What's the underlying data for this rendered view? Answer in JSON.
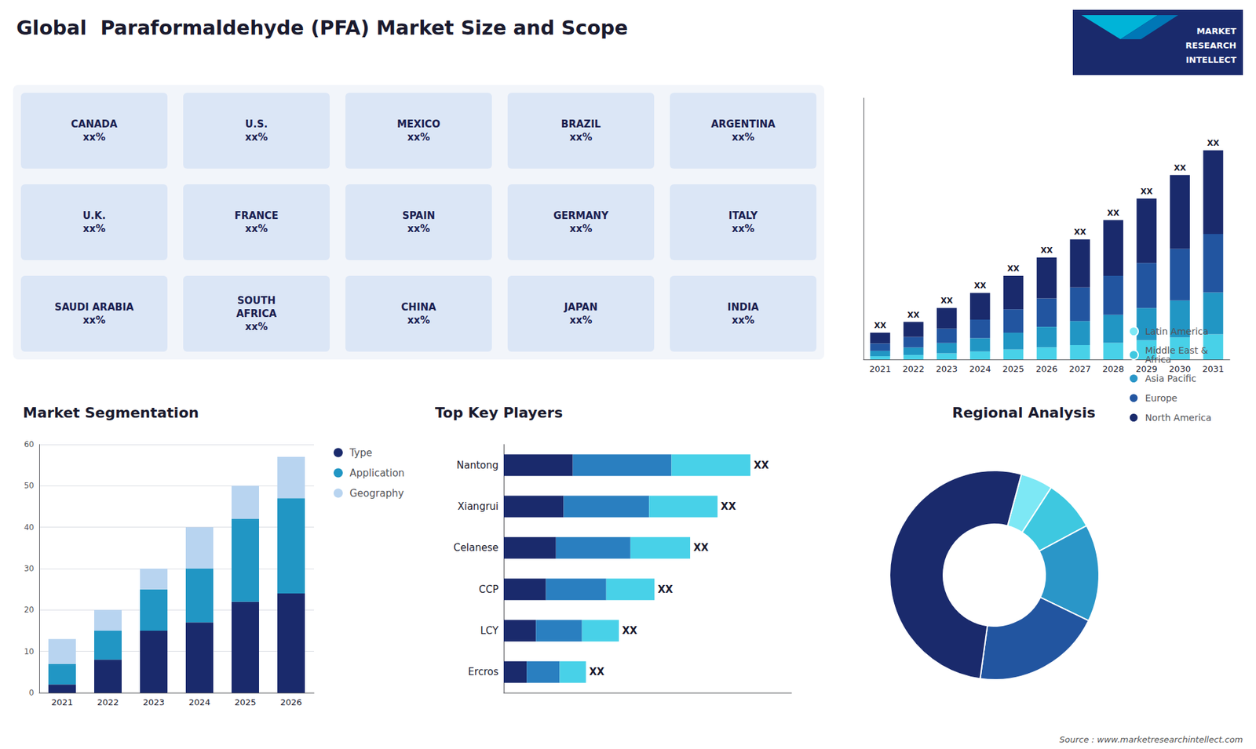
{
  "chart_data": [
    {
      "type": "map",
      "title": "Global  Paraformaldehyde (PFA) Market Size and Scope",
      "annotations": [
        "CANADA\nxx%",
        "U.S.\nxx%",
        "MEXICO\nxx%",
        "BRAZIL\nxx%",
        "ARGENTINA\nxx%",
        "U.K.\nxx%",
        "FRANCE\nxx%",
        "SPAIN\nxx%",
        "GERMANY\nxx%",
        "ITALY\nxx%",
        "SAUDI ARABIA\nxx%",
        "SOUTH\nAFRICA\nxx%",
        "CHINA\nxx%",
        "JAPAN\nxx%",
        "INDIA\nxx%"
      ],
      "logo": [
        "MARKET",
        "RESEARCH",
        "INTELLECT"
      ],
      "source": "Source : www.marketresearchintellect.com"
    },
    {
      "type": "bar",
      "stacked": true,
      "grid": false,
      "tick_labels": "x",
      "categories": [
        "2021",
        "2022",
        "2023",
        "2024",
        "2025",
        "2026",
        "2027",
        "2028",
        "2029",
        "2030",
        "2031"
      ],
      "ylim": [
        0,
        24.375
      ],
      "series": [
        {
          "color": "#48d1e8",
          "values": [
            0.3,
            0.42,
            0.576,
            0.744,
            0.936,
            1.14,
            1.344,
            1.56,
            1.8,
            2.064,
            2.34
          ]
        },
        {
          "color": "#2196c4",
          "values": [
            0.5,
            0.7,
            0.96,
            1.24,
            1.56,
            1.9,
            2.24,
            2.6,
            3.0,
            3.44,
            3.9
          ]
        },
        {
          "color": "#2255a0",
          "values": [
            0.7,
            0.98,
            1.344,
            1.736,
            2.184,
            2.66,
            3.136,
            3.64,
            4.2,
            4.816,
            5.46
          ]
        },
        {
          "color": "#1a2a6c",
          "values": [
            1.0,
            1.4,
            1.92,
            2.48,
            3.12,
            3.8,
            4.48,
            5.2,
            6.0,
            6.88,
            7.8
          ],
          "value_labels": [
            "XX",
            "XX",
            "XX",
            "XX",
            "XX",
            "XX",
            "XX",
            "XX",
            "XX",
            "XX",
            "XX"
          ]
        }
      ]
    },
    {
      "type": "bar",
      "title": "Market Segmentation",
      "stacked": true,
      "grid": true,
      "legend": "right",
      "categories": [
        "2021",
        "2022",
        "2023",
        "2024",
        "2025",
        "2026"
      ],
      "ylim": [
        0,
        60
      ],
      "yticks": [
        0,
        10,
        20,
        30,
        40,
        50,
        60
      ],
      "series": [
        {
          "name": "Type",
          "color": "#1a2a6c",
          "values": [
            2,
            8,
            15,
            17,
            22,
            24
          ]
        },
        {
          "name": "Application",
          "color": "#2196c4",
          "values": [
            5,
            7,
            10,
            13,
            20,
            23
          ]
        },
        {
          "name": "Geography",
          "color": "#b8d4f0",
          "values": [
            6,
            5,
            5,
            10,
            8,
            10
          ]
        }
      ]
    },
    {
      "type": "bar",
      "title": "Top Key Players",
      "orientation": "horizontal",
      "stacked": true,
      "grid": false,
      "tick_labels": "y",
      "categories": [
        "Nantong",
        "Xiangrui",
        "Celanese",
        "CCP",
        "LCY",
        "Ercros"
      ],
      "xlim": [
        0,
        1.05
      ],
      "series": [
        {
          "color": "#1a2a6c",
          "values": [
            0.252,
            0.2184,
            0.1904,
            0.154,
            0.1176,
            0.084
          ]
        },
        {
          "color": "#2a7fc0",
          "values": [
            0.36,
            0.312,
            0.272,
            0.22,
            0.168,
            0.12
          ]
        },
        {
          "color": "#48d1e8",
          "values": [
            0.288,
            0.2496,
            0.2176,
            0.176,
            0.1344,
            0.096
          ],
          "value_labels": [
            "XX",
            "XX",
            "XX",
            "XX",
            "XX",
            "XX"
          ]
        }
      ]
    },
    {
      "type": "pie",
      "title": "Regional Analysis",
      "legend": "right",
      "categories": [
        "Latin America",
        "Middle East &\nAfrica",
        "Asia Pacific",
        "Europe",
        "North America"
      ],
      "values": [
        5,
        8,
        15,
        20,
        52
      ],
      "colors": [
        "#7de8f5",
        "#3ec8e0",
        "#2a96c8",
        "#2255a0",
        "#1a2a6c"
      ]
    }
  ]
}
